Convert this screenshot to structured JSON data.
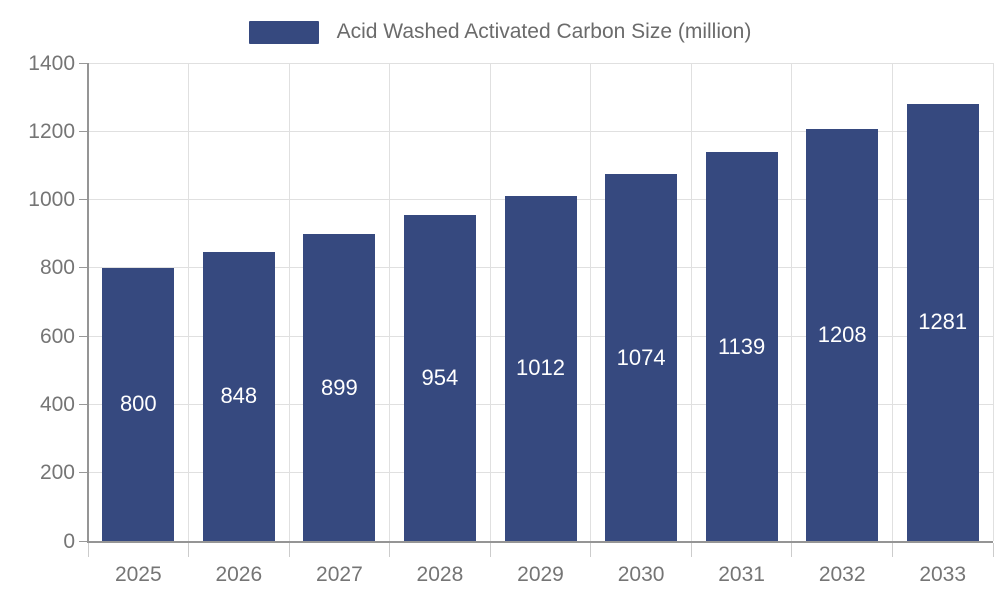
{
  "legend": {
    "label": "Acid Washed Activated Carbon Size (million)"
  },
  "colors": {
    "bar": "#36497f",
    "grid": "#e0e0e0",
    "axis_line": "#959595",
    "y_tick": "#999999",
    "x_tick": "#cccccc",
    "axis_label": "#757575",
    "legend_text": "#6b6b6b",
    "bar_label": "#ffffff"
  },
  "chart_data": {
    "type": "bar",
    "title": "Acid Washed Activated Carbon Size (million)",
    "categories": [
      "2025",
      "2026",
      "2027",
      "2028",
      "2029",
      "2030",
      "2031",
      "2032",
      "2033"
    ],
    "values": [
      800,
      848,
      899,
      954,
      1012,
      1074,
      1139,
      1208,
      1281
    ],
    "xlabel": "",
    "ylabel": "",
    "ylim": [
      0,
      1400
    ],
    "yticks": [
      0,
      200,
      400,
      600,
      800,
      1000,
      1200,
      1400
    ],
    "grid": true,
    "legend_position": "top",
    "value_labels": "inside-middle"
  }
}
